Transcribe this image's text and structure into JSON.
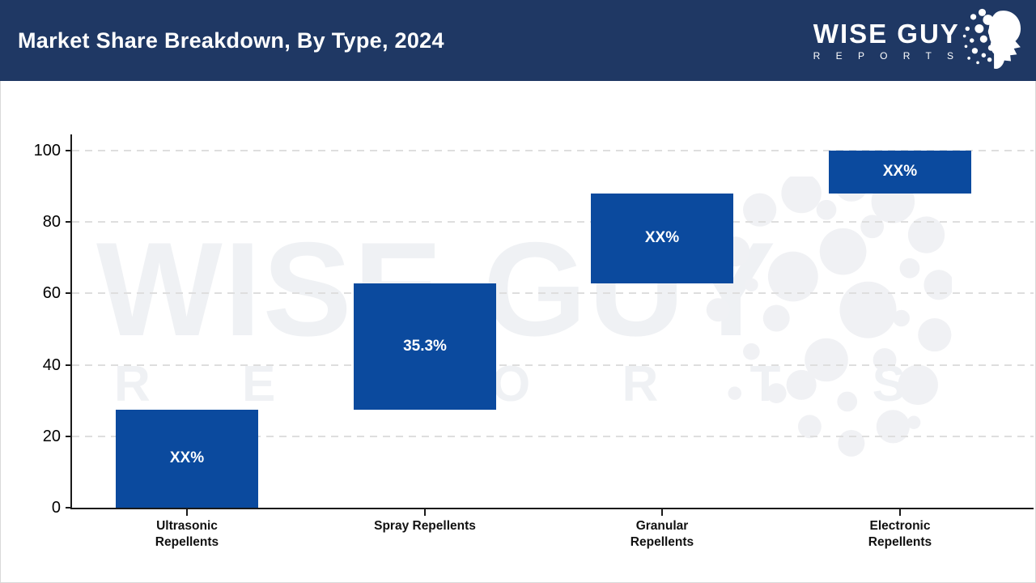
{
  "header": {
    "title": "Market Share Breakdown, By Type, 2024",
    "bg_color": "#1f3864",
    "logo": {
      "line1": "WISE GUY",
      "line2": "R E P O R T S"
    }
  },
  "watermark": {
    "line1": "WISE GUY",
    "line2": "R E P O R T S"
  },
  "chart_data": {
    "type": "bar",
    "variant": "floating-waterfall",
    "title": "Market Share Breakdown, By Type, 2024",
    "categories": [
      "Ultrasonic Repellents",
      "Spray Repellents",
      "Granular Repellents",
      "Electronic Repellents"
    ],
    "category_label_lines": [
      [
        "Ultrasonic",
        "Repellents"
      ],
      [
        "Spray Repellents"
      ],
      [
        "Granular",
        "Repellents"
      ],
      [
        "Electronic",
        "Repellents"
      ]
    ],
    "bars": [
      {
        "category": "Ultrasonic Repellents",
        "start": 0,
        "end": 27.5,
        "label": "XX%"
      },
      {
        "category": "Spray Repellents",
        "start": 27.5,
        "end": 62.8,
        "label": "35.3%"
      },
      {
        "category": "Granular Repellents",
        "start": 62.8,
        "end": 88.0,
        "label": "XX%"
      },
      {
        "category": "Electronic Repellents",
        "start": 88.0,
        "end": 100.0,
        "label": "XX%"
      }
    ],
    "ylim": [
      0,
      100
    ],
    "yticks": [
      0,
      20,
      40,
      60,
      80,
      100
    ],
    "xlabel": "",
    "ylabel": "",
    "grid": {
      "horizontal": true,
      "style": "dashed",
      "color": "#dedede"
    },
    "legend": null,
    "bar_color": "#0b4a9e",
    "bar_label_color": "#ffffff"
  }
}
